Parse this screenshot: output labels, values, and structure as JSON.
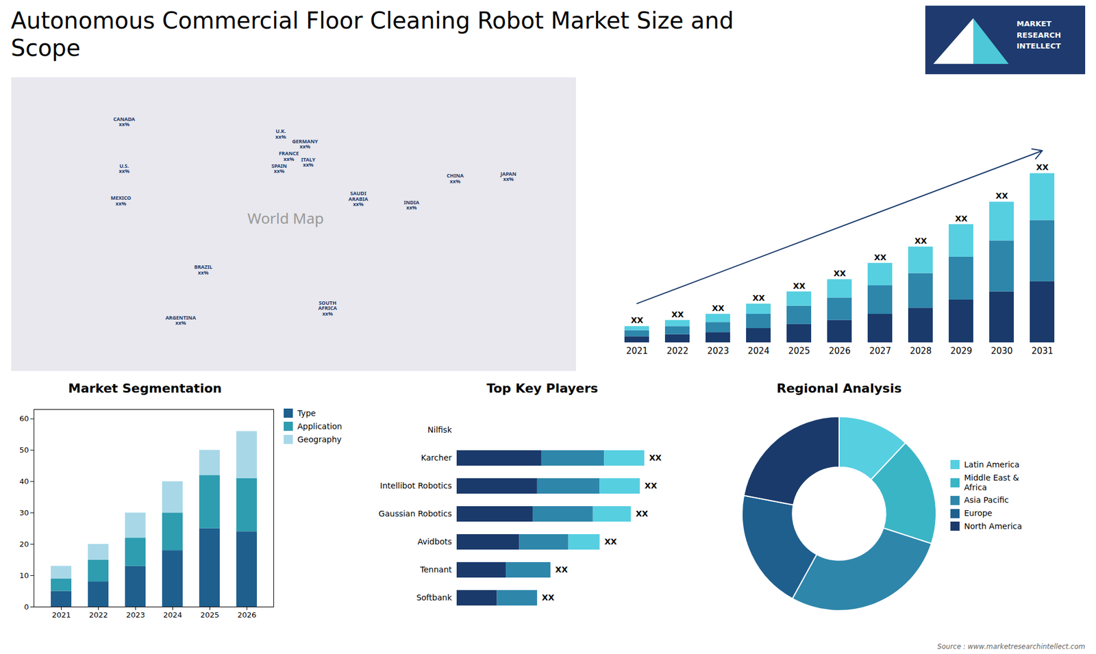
{
  "chart_data": [
    {
      "type": "map",
      "title": "Autonomous Commercial Floor Cleaning Robot Market Size and\nScope",
      "caption": "Source : www.marketresearchintellect.com",
      "xlim": [
        -170,
        180
      ],
      "ylim": [
        -60,
        85
      ],
      "tick_labels": false,
      "annotations": [
        {
          "text": "MARKET\nRESEARCH\nINTELLECT"
        },
        {
          "text": "World Map",
          "x": 0,
          "y": 15
        },
        {
          "text": "CANADA\nxx%",
          "x": -100,
          "y": 63
        },
        {
          "text": "U.S.\nxx%",
          "x": -100,
          "y": 40
        },
        {
          "text": "U.K.\nxx%",
          "x": -3,
          "y": 57
        },
        {
          "text": "FRANCE\nxx%",
          "x": 2,
          "y": 46
        },
        {
          "text": "SPAIN\nxx%",
          "x": -4,
          "y": 40
        },
        {
          "text": "GERMANY\nxx%",
          "x": 12,
          "y": 52
        },
        {
          "text": "ITALY\nxx%",
          "x": 14,
          "y": 43
        },
        {
          "text": "SAUDI\nARABIA\nxx%",
          "x": 45,
          "y": 25
        },
        {
          "text": "CHINA\nxx%",
          "x": 105,
          "y": 35
        },
        {
          "text": "JAPAN\nxx%",
          "x": 138,
          "y": 36
        },
        {
          "text": "INDIA\nxx%",
          "x": 78,
          "y": 22
        },
        {
          "text": "MEXICO\nxx%",
          "x": -102,
          "y": 24
        },
        {
          "text": "BRAZIL\nxx%",
          "x": -51,
          "y": -10
        },
        {
          "text": "ARGENTINA\nxx%",
          "x": -65,
          "y": -35
        },
        {
          "text": "SOUTH\nAFRICA\nxx%",
          "x": 26,
          "y": -29
        }
      ]
    },
    {
      "type": "bar",
      "stacked": true,
      "grid": false,
      "tick_labels": "x",
      "categories": [
        "2021",
        "2022",
        "2023",
        "2024",
        "2025",
        "2026",
        "2027",
        "2028",
        "2029",
        "2030",
        "2031"
      ],
      "series": [
        {
          "color": "#1a3a6b",
          "values": [
            3,
            4,
            5,
            7,
            9,
            11,
            14,
            17,
            21,
            25,
            30
          ]
        },
        {
          "color": "#2e86ab",
          "values": [
            3,
            4,
            5,
            7,
            9,
            11,
            14,
            17,
            21,
            25,
            30
          ]
        },
        {
          "color": "#56cfe1",
          "values": [
            2,
            3,
            4,
            5,
            7,
            9,
            11,
            13,
            16,
            19,
            23
          ]
        }
      ],
      "ylim": [
        0,
        120.35
      ],
      "annotations": [
        {
          "text": "XX",
          "category": "2021"
        },
        {
          "text": "XX",
          "category": "2022"
        },
        {
          "text": "XX",
          "category": "2023"
        },
        {
          "text": "XX",
          "category": "2024"
        },
        {
          "text": "XX",
          "category": "2025"
        },
        {
          "text": "XX",
          "category": "2026"
        },
        {
          "text": "XX",
          "category": "2027"
        },
        {
          "text": "XX",
          "category": "2028"
        },
        {
          "text": "XX",
          "category": "2029"
        },
        {
          "text": "XX",
          "category": "2030"
        },
        {
          "text": "XX",
          "category": "2031"
        }
      ]
    },
    {
      "type": "bar",
      "stacked": true,
      "grid": false,
      "legend": "right",
      "title": "Market Segmentation",
      "categories": [
        "2021",
        "2022",
        "2023",
        "2024",
        "2025",
        "2026"
      ],
      "series": [
        {
          "name": "Type",
          "color": "#1e5f8e",
          "values": [
            5,
            8,
            13,
            18,
            25,
            24
          ]
        },
        {
          "name": "Application",
          "color": "#2e9db0",
          "values": [
            4,
            7,
            9,
            12,
            17,
            17
          ]
        },
        {
          "name": "Geography",
          "color": "#a8d8e8",
          "values": [
            4,
            5,
            8,
            10,
            8,
            15
          ]
        }
      ],
      "ylim": [
        0,
        63
      ],
      "yticks": [
        0,
        10,
        20,
        30,
        40,
        50,
        60
      ]
    },
    {
      "type": "bar",
      "orientation": "horizontal",
      "stacked": true,
      "grid": false,
      "tick_labels": "y",
      "title": "Top Key Players",
      "categories": [
        "Nilfisk",
        "Karcher",
        "Intellibot Robotics",
        "Gaussian Robotics",
        "Avidbots",
        "Tennant",
        "Softbank"
      ],
      "series": [
        {
          "color": "#1a3a6b",
          "values": [
            0,
            0.38,
            0.36,
            0.34,
            0.28,
            0.22,
            0.18
          ]
        },
        {
          "color": "#2e86ab",
          "values": [
            0,
            0.28,
            0.28,
            0.27,
            0.22,
            0.2,
            0.18
          ]
        },
        {
          "color": "#56cfe1",
          "values": [
            0,
            0.18,
            0.18,
            0.17,
            0.14,
            0,
            0
          ]
        }
      ],
      "xlim": [
        0,
        1.15
      ],
      "annotations": [
        {
          "text": "XX",
          "category": "Karcher"
        },
        {
          "text": "XX",
          "category": "Intellibot Robotics"
        },
        {
          "text": "XX",
          "category": "Gaussian Robotics"
        },
        {
          "text": "XX",
          "category": "Avidbots"
        },
        {
          "text": "XX",
          "category": "Tennant"
        },
        {
          "text": "XX",
          "category": "Softbank"
        }
      ]
    },
    {
      "type": "pie",
      "title": "Regional Analysis",
      "legend": "right",
      "categories": [
        "Latin America",
        "Middle East &\nAfrica",
        "Asia Pacific",
        "Europe",
        "North America"
      ],
      "values": [
        12,
        18,
        28,
        20,
        22
      ],
      "colors": [
        "#56cfe1",
        "#3ab5c6",
        "#2e86ab",
        "#1e5f8e",
        "#1a3a6b"
      ]
    }
  ]
}
